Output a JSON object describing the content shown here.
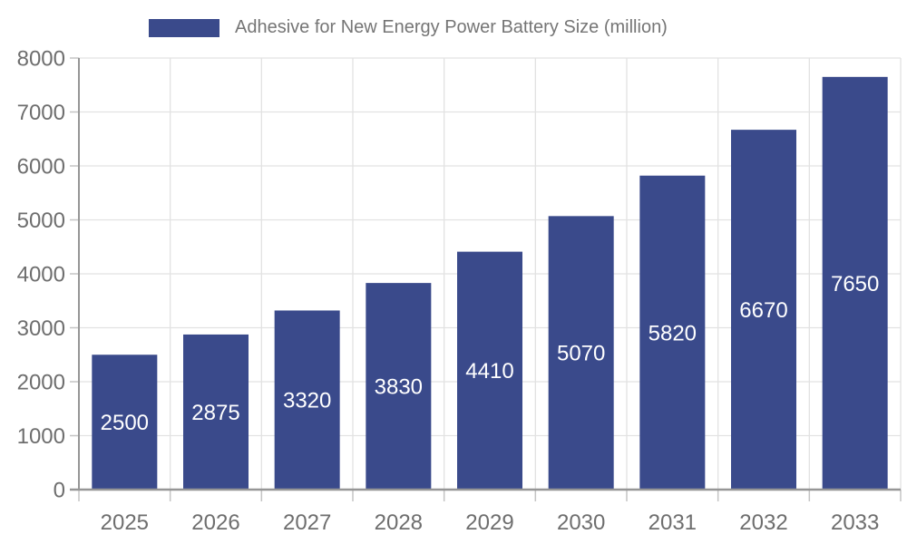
{
  "chart_data": {
    "type": "bar",
    "title": "",
    "legend": "Adhesive for New Energy Power Battery Size (million)",
    "series_name": "Adhesive for New Energy Power Battery Size (million)",
    "categories": [
      "2025",
      "2026",
      "2027",
      "2028",
      "2029",
      "2030",
      "2031",
      "2032",
      "2033"
    ],
    "values": [
      2500,
      2875,
      3320,
      3830,
      4410,
      5070,
      5820,
      6670,
      7650
    ],
    "xlabel": "",
    "ylabel": "",
    "ylim": [
      0,
      8000
    ],
    "yticks": [
      0,
      1000,
      2000,
      3000,
      4000,
      5000,
      6000,
      7000,
      8000
    ],
    "grid": true,
    "legend_position": "top",
    "value_label_position": "inside-center",
    "colors": {
      "bar": "#3A4A8B",
      "bar_label": "#FFFFFF",
      "legend_text": "#757575",
      "tick_text": "#6E6E6E",
      "grid": "#E2E2E2",
      "axis_line": "#969696",
      "tick_mark": "#C4C4C4",
      "background": "#FFFFFF"
    }
  }
}
